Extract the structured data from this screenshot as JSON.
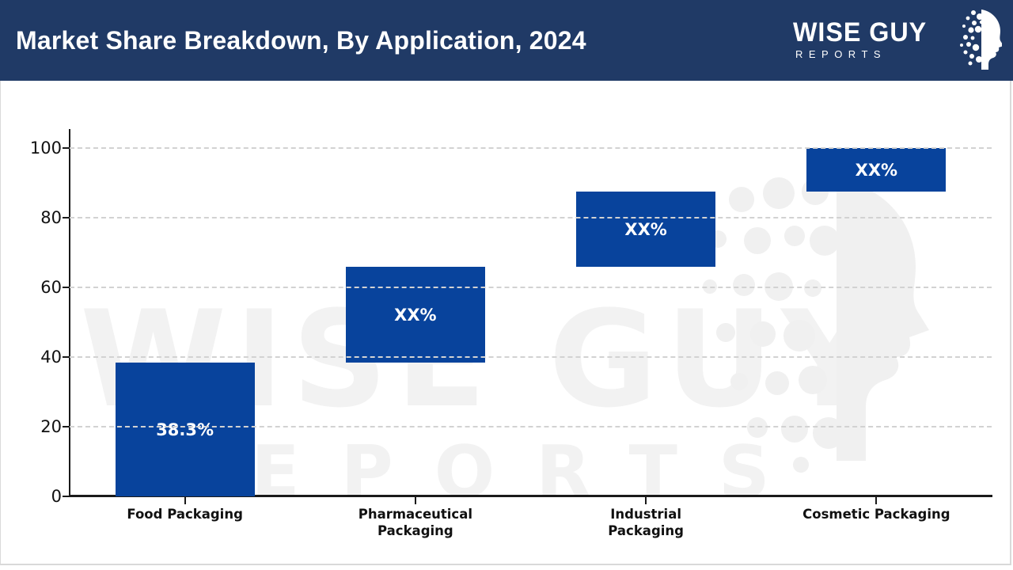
{
  "header": {
    "title": "Market Share Breakdown, By Application, 2024",
    "logo": {
      "line1": "WISE GUY",
      "line2": "REPORTS"
    }
  },
  "watermark": {
    "line1": "WISE GUY",
    "line2": "REPORTS"
  },
  "colors": {
    "header_bg": "#203a66",
    "bar": "#08439c",
    "grid": "#d2d2d2",
    "axis": "#1a1a1a",
    "bar_label": "#ffffff",
    "watermark": "#f2f2f2"
  },
  "chart_data": {
    "type": "bar",
    "subtype": "waterfall",
    "title": "Market Share Breakdown, By Application, 2024",
    "categories": [
      "Food Packaging",
      "Pharmaceutical Packaging",
      "Industrial Packaging",
      "Cosmetic Packaging"
    ],
    "category_lines": [
      [
        "Food Packaging"
      ],
      [
        "Pharmaceutical",
        "Packaging"
      ],
      [
        "Industrial",
        "Packaging"
      ],
      [
        "Cosmetic Packaging"
      ]
    ],
    "segments": [
      {
        "category": "Food Packaging",
        "start": 0,
        "end": 38.3,
        "value": 38.3,
        "label": "38.3%"
      },
      {
        "category": "Pharmaceutical Packaging",
        "start": 38.3,
        "end": 65.8,
        "value": 27.5,
        "label": "XX%"
      },
      {
        "category": "Industrial Packaging",
        "start": 65.8,
        "end": 87.5,
        "value": 21.7,
        "label": "XX%"
      },
      {
        "category": "Cosmetic Packaging",
        "start": 87.5,
        "end": 100,
        "value": 12.5,
        "label": "XX%"
      }
    ],
    "ylim": [
      0,
      100
    ],
    "yticks": [
      0,
      20,
      40,
      60,
      80,
      100
    ],
    "xlabel": "",
    "ylabel": "",
    "grid": "dashed-horizontal",
    "legend": "none"
  }
}
